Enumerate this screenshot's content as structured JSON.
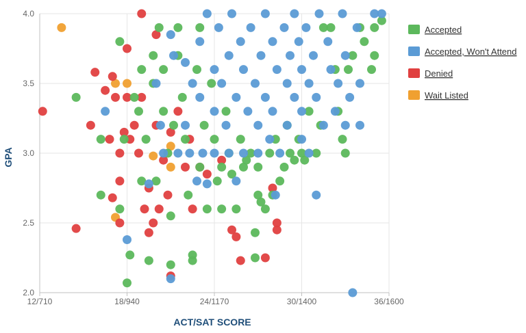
{
  "chart_data": {
    "type": "scatter",
    "xlabel": "ACT/SAT SCORE",
    "ylabel": "GPA",
    "xlim": [
      12,
      36
    ],
    "ylim": [
      2.0,
      4.0
    ],
    "x_ticks": [
      {
        "value": 12,
        "label": "12/710"
      },
      {
        "value": 18,
        "label": "18/940"
      },
      {
        "value": 24,
        "label": "24/1170"
      },
      {
        "value": 30,
        "label": "30/1400"
      },
      {
        "value": 36,
        "label": "36/1600"
      }
    ],
    "y_ticks": [
      {
        "value": 2.0,
        "label": "2.0"
      },
      {
        "value": 2.5,
        "label": "2.5"
      },
      {
        "value": 3.0,
        "label": "3.0"
      },
      {
        "value": 3.5,
        "label": "3.5"
      },
      {
        "value": 4.0,
        "label": "4.0"
      }
    ],
    "grid": true,
    "legend_position": "right",
    "series": [
      {
        "name": "Accepted",
        "color": "#5cb85c",
        "points": [
          [
            14.5,
            3.4
          ],
          [
            16.2,
            2.7
          ],
          [
            16.2,
            3.1
          ],
          [
            17.5,
            3.8
          ],
          [
            17.5,
            2.6
          ],
          [
            17.8,
            3.1
          ],
          [
            18,
            2.07
          ],
          [
            18.2,
            2.27
          ],
          [
            18.5,
            3.4
          ],
          [
            18.8,
            3.3
          ],
          [
            19,
            3.6
          ],
          [
            19,
            2.8
          ],
          [
            19.3,
            3.1
          ],
          [
            19.5,
            2.23
          ],
          [
            19.8,
            3.7
          ],
          [
            19.8,
            3.5
          ],
          [
            20,
            2.8
          ],
          [
            20.2,
            3.9
          ],
          [
            20.5,
            3.6
          ],
          [
            20.5,
            3.3
          ],
          [
            20.8,
            3.0
          ],
          [
            21,
            2.2
          ],
          [
            21,
            2.55
          ],
          [
            21.2,
            3.2
          ],
          [
            21.5,
            3.9
          ],
          [
            21.5,
            3.7
          ],
          [
            21.8,
            3.4
          ],
          [
            22,
            3.1
          ],
          [
            22.2,
            2.7
          ],
          [
            22.5,
            2.27
          ],
          [
            22.5,
            2.23
          ],
          [
            22.8,
            3.6
          ],
          [
            23,
            3.9
          ],
          [
            23,
            2.9
          ],
          [
            23.3,
            3.2
          ],
          [
            23.5,
            2.6
          ],
          [
            23.8,
            3.5
          ],
          [
            24,
            3.1
          ],
          [
            24.2,
            2.8
          ],
          [
            24.5,
            2.9
          ],
          [
            24.5,
            2.6
          ],
          [
            24.8,
            3.3
          ],
          [
            25,
            3.0
          ],
          [
            25.2,
            2.85
          ],
          [
            25.5,
            2.6
          ],
          [
            25.8,
            3.1
          ],
          [
            26,
            2.9
          ],
          [
            26.2,
            2.95
          ],
          [
            26.5,
            3.0
          ],
          [
            26.8,
            2.43
          ],
          [
            26.8,
            2.25
          ],
          [
            27,
            2.9
          ],
          [
            27,
            2.7
          ],
          [
            27.2,
            2.65
          ],
          [
            27.5,
            2.6
          ],
          [
            27.8,
            3.0
          ],
          [
            28,
            2.7
          ],
          [
            28.2,
            3.1
          ],
          [
            28.5,
            2.8
          ],
          [
            28.8,
            2.9
          ],
          [
            29,
            3.2
          ],
          [
            29.2,
            3.0
          ],
          [
            29.5,
            2.95
          ],
          [
            29.8,
            3.1
          ],
          [
            30,
            3.0
          ],
          [
            30.2,
            2.95
          ],
          [
            30.5,
            3.3
          ],
          [
            31,
            3.0
          ],
          [
            31.3,
            3.2
          ],
          [
            31.5,
            3.9
          ],
          [
            32,
            3.9
          ],
          [
            32.3,
            3.6
          ],
          [
            32.5,
            3.3
          ],
          [
            32.8,
            3.1
          ],
          [
            33,
            3.0
          ],
          [
            33.2,
            3.6
          ],
          [
            33.5,
            3.7
          ],
          [
            34,
            3.9
          ],
          [
            34.3,
            3.8
          ],
          [
            34.8,
            3.6
          ],
          [
            35,
            3.9
          ],
          [
            35,
            3.7
          ],
          [
            35.5,
            3.95
          ]
        ]
      },
      {
        "name": "Accepted, Won't Attend",
        "color": "#5b9bd5",
        "points": [
          [
            16.5,
            3.3
          ],
          [
            18,
            2.38
          ],
          [
            19.5,
            2.78
          ],
          [
            20,
            3.5
          ],
          [
            20.3,
            3.2
          ],
          [
            20.5,
            3.0
          ],
          [
            21,
            3.85
          ],
          [
            21,
            2.1
          ],
          [
            21.2,
            3.7
          ],
          [
            21.5,
            3.0
          ],
          [
            22,
            3.65
          ],
          [
            22,
            3.2
          ],
          [
            22.3,
            3.0
          ],
          [
            22.5,
            3.5
          ],
          [
            22.8,
            2.8
          ],
          [
            23,
            3.8
          ],
          [
            23,
            3.4
          ],
          [
            23.2,
            3.0
          ],
          [
            23.5,
            2.78
          ],
          [
            23.5,
            4.0
          ],
          [
            24,
            3.6
          ],
          [
            24,
            3.3
          ],
          [
            24,
            3.0
          ],
          [
            24.3,
            3.9
          ],
          [
            24.5,
            3.5
          ],
          [
            24.8,
            3.2
          ],
          [
            25,
            3.7
          ],
          [
            25,
            3.0
          ],
          [
            25.2,
            4.0
          ],
          [
            25.5,
            3.4
          ],
          [
            25.5,
            2.8
          ],
          [
            25.8,
            3.8
          ],
          [
            26,
            3.6
          ],
          [
            26,
            3.0
          ],
          [
            26.3,
            3.3
          ],
          [
            26.5,
            3.9
          ],
          [
            26.8,
            3.5
          ],
          [
            27,
            3.2
          ],
          [
            27,
            3.0
          ],
          [
            27.2,
            3.7
          ],
          [
            27.5,
            4.0
          ],
          [
            27.5,
            3.4
          ],
          [
            27.8,
            3.1
          ],
          [
            28,
            3.8
          ],
          [
            28,
            3.3
          ],
          [
            28.2,
            2.7
          ],
          [
            28.3,
            3.6
          ],
          [
            28.5,
            3.0
          ],
          [
            28.8,
            3.9
          ],
          [
            29,
            3.5
          ],
          [
            29,
            3.2
          ],
          [
            29.2,
            3.7
          ],
          [
            29.5,
            4.0
          ],
          [
            29.5,
            3.4
          ],
          [
            29.8,
            3.8
          ],
          [
            30,
            3.6
          ],
          [
            30,
            3.3
          ],
          [
            30,
            3.1
          ],
          [
            30.3,
            3.9
          ],
          [
            30.5,
            3.5
          ],
          [
            30.5,
            3.0
          ],
          [
            30.8,
            3.7
          ],
          [
            31,
            2.7
          ],
          [
            31,
            3.4
          ],
          [
            31.2,
            4.0
          ],
          [
            31.5,
            3.2
          ],
          [
            31.8,
            3.8
          ],
          [
            32,
            3.6
          ],
          [
            32.3,
            3.3
          ],
          [
            32.5,
            3.5
          ],
          [
            32.8,
            4.0
          ],
          [
            33,
            3.2
          ],
          [
            33,
            3.7
          ],
          [
            33.3,
            3.4
          ],
          [
            33.5,
            2.0
          ],
          [
            33.8,
            3.9
          ],
          [
            34,
            3.5
          ],
          [
            34,
            3.2
          ],
          [
            35,
            4.0
          ],
          [
            35.5,
            4.0
          ]
        ]
      },
      {
        "name": "Denied",
        "color": "#e04040",
        "points": [
          [
            12.2,
            3.3
          ],
          [
            14.5,
            2.46
          ],
          [
            15.5,
            3.2
          ],
          [
            15.8,
            3.58
          ],
          [
            16.5,
            3.45
          ],
          [
            16.8,
            3.1
          ],
          [
            17,
            2.68
          ],
          [
            17,
            3.55
          ],
          [
            17.2,
            3.4
          ],
          [
            17.5,
            3.0
          ],
          [
            17.5,
            2.8
          ],
          [
            17.5,
            2.5
          ],
          [
            17.8,
            3.15
          ],
          [
            18,
            3.75
          ],
          [
            18,
            3.4
          ],
          [
            18.2,
            3.1
          ],
          [
            18.5,
            3.2
          ],
          [
            18.8,
            3.0
          ],
          [
            19,
            4.0
          ],
          [
            19,
            3.4
          ],
          [
            19.2,
            2.6
          ],
          [
            19.5,
            2.75
          ],
          [
            19.5,
            2.43
          ],
          [
            19.8,
            2.5
          ],
          [
            20,
            3.85
          ],
          [
            20,
            3.2
          ],
          [
            20.2,
            2.6
          ],
          [
            20.5,
            2.95
          ],
          [
            20.8,
            2.7
          ],
          [
            21,
            2.12
          ],
          [
            21,
            3.15
          ],
          [
            21.5,
            3.3
          ],
          [
            22,
            2.9
          ],
          [
            22.3,
            3.1
          ],
          [
            22.5,
            2.6
          ],
          [
            23,
            2.9
          ],
          [
            23.5,
            2.85
          ],
          [
            24.5,
            2.95
          ],
          [
            25.2,
            2.45
          ],
          [
            25.5,
            2.4
          ],
          [
            25.8,
            2.23
          ],
          [
            27.5,
            2.25
          ],
          [
            28,
            2.75
          ],
          [
            28.3,
            2.5
          ],
          [
            28.3,
            2.45
          ]
        ]
      },
      {
        "name": "Wait Listed",
        "color": "#f0a030",
        "points": [
          [
            13.5,
            3.9
          ],
          [
            17.2,
            3.5
          ],
          [
            17.2,
            2.54
          ],
          [
            18,
            3.5
          ],
          [
            19.8,
            2.98
          ],
          [
            21,
            2.9
          ],
          [
            21,
            3.05
          ]
        ]
      }
    ]
  }
}
